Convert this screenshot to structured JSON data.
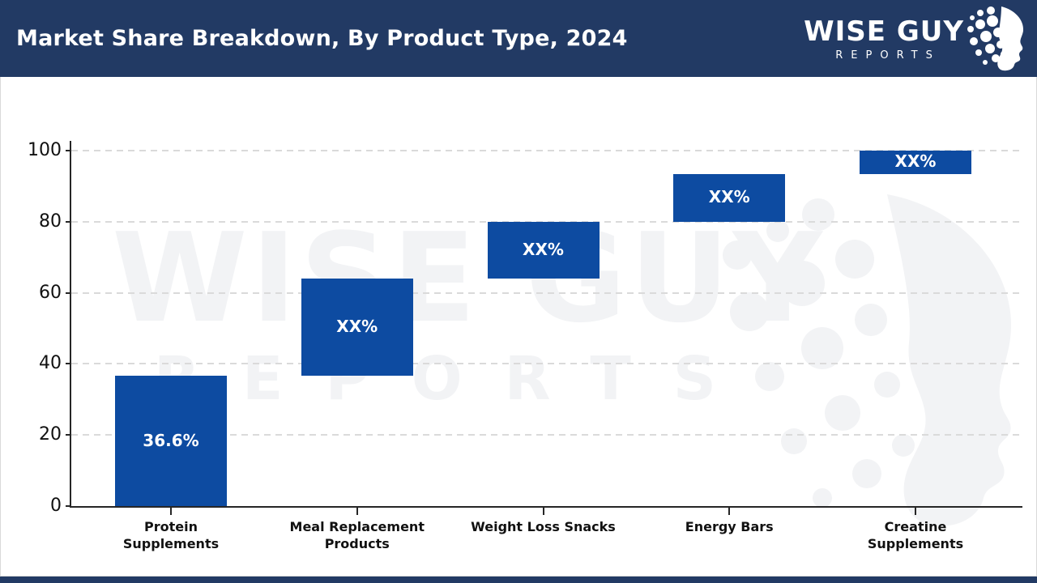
{
  "header": {
    "title": "Market Share Breakdown, By Product Type, 2024",
    "logo": {
      "line1": "WISE GUY",
      "line2": "REPORTS"
    }
  },
  "watermark": {
    "line1": "WISE GUY",
    "line2": "REPORTS"
  },
  "colors": {
    "header_bg": "#223A64",
    "footer_bg": "#223A64",
    "bar": "#0D4BA1",
    "grid": "#DADADA",
    "axis": "#262626",
    "tick_label": "#111111",
    "bar_label": "#FFFFFF",
    "watermark": "#F2F3F5"
  },
  "chart_data": {
    "type": "bar",
    "subtype": "waterfall",
    "title": "Market Share Breakdown, By Product Type, 2024",
    "categories": [
      "Protein Supplements",
      "Meal Replacement Products",
      "Weight Loss Snacks",
      "Energy Bars",
      "Creatine Supplements"
    ],
    "category_lines": [
      [
        "Protein",
        "Supplements"
      ],
      [
        "Meal Replacement",
        "Products"
      ],
      [
        "Weight Loss Snacks"
      ],
      [
        "Energy Bars"
      ],
      [
        "Creatine",
        "Supplements"
      ]
    ],
    "series": [
      {
        "name": "Market share (%)",
        "segments": [
          {
            "start": 0,
            "end": 36.6,
            "label": "36.6%"
          },
          {
            "start": 36.6,
            "end": 64,
            "label": "XX%"
          },
          {
            "start": 64,
            "end": 80,
            "label": "XX%"
          },
          {
            "start": 80,
            "end": 93.5,
            "label": "XX%"
          },
          {
            "start": 93.5,
            "end": 100,
            "label": "XX%"
          }
        ]
      }
    ],
    "xlabel": "",
    "ylabel": "",
    "ylim": [
      0,
      100
    ],
    "yticks": [
      0,
      20,
      40,
      60,
      80,
      100
    ],
    "grid": "dashed-horizontal",
    "legend": "none"
  }
}
